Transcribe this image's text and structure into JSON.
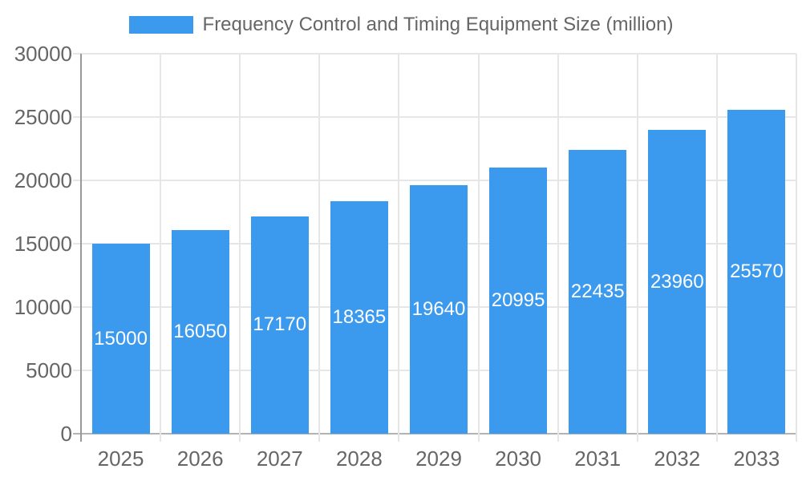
{
  "chart_data": {
    "type": "bar",
    "title": "Frequency Control and Timing Equipment Size (million)",
    "legend_position": "top",
    "grid": true,
    "categories": [
      "2025",
      "2026",
      "2027",
      "2028",
      "2029",
      "2030",
      "2031",
      "2032",
      "2033"
    ],
    "values": [
      15000,
      16050,
      17170,
      18365,
      19640,
      20995,
      22435,
      23960,
      25570
    ],
    "xlabel": "",
    "ylabel": "",
    "ylim": [
      0,
      30000
    ],
    "yticks": [
      0,
      5000,
      10000,
      15000,
      20000,
      25000,
      30000
    ],
    "colors": {
      "bar": "#3B99EE",
      "value_label": "#FFFFFF",
      "axis_text": "#666666",
      "gridline": "#E6E6E6",
      "y_axis_line": "#999999",
      "x_axis_line": "#B3B3B3"
    }
  }
}
